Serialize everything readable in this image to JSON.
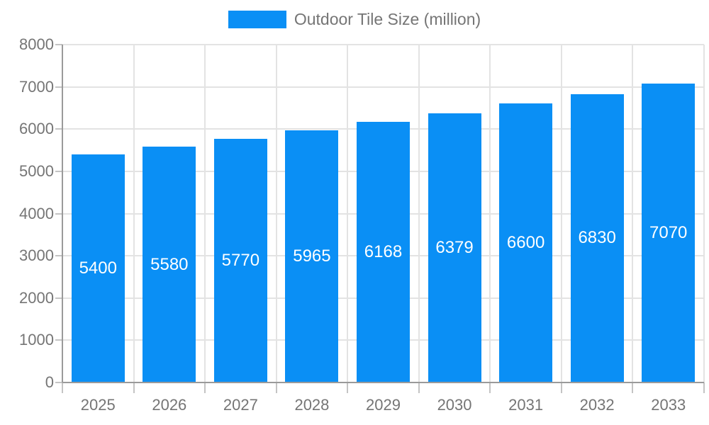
{
  "legend": {
    "label": "Outdoor Tile Size (million)"
  },
  "chart_data": {
    "type": "bar",
    "title": "Outdoor Tile Size (million)",
    "categories": [
      "2025",
      "2026",
      "2027",
      "2028",
      "2029",
      "2030",
      "2031",
      "2032",
      "2033"
    ],
    "values": [
      5400,
      5580,
      5770,
      5965,
      6168,
      6379,
      6600,
      6830,
      7070
    ],
    "value_labels": [
      "5400",
      "5580",
      "5770",
      "5965",
      "6168",
      "6379",
      "6600",
      "6830",
      "7070"
    ],
    "xlabel": "",
    "ylabel": "",
    "ylim": [
      0,
      8000
    ],
    "ytick_step": 1000,
    "ytick_labels": [
      "0",
      "1000",
      "2000",
      "3000",
      "4000",
      "5000",
      "6000",
      "7000",
      "8000"
    ],
    "grid": true,
    "legend_position": "top",
    "colors": {
      "bar": "#0a8ff5",
      "grid": "#e3e3e3",
      "axis": "#9a9a9a",
      "tick": "#c4c4c4",
      "axis_text": "#757575",
      "value_text": "#ffffff",
      "legend_text": "#757575"
    }
  }
}
